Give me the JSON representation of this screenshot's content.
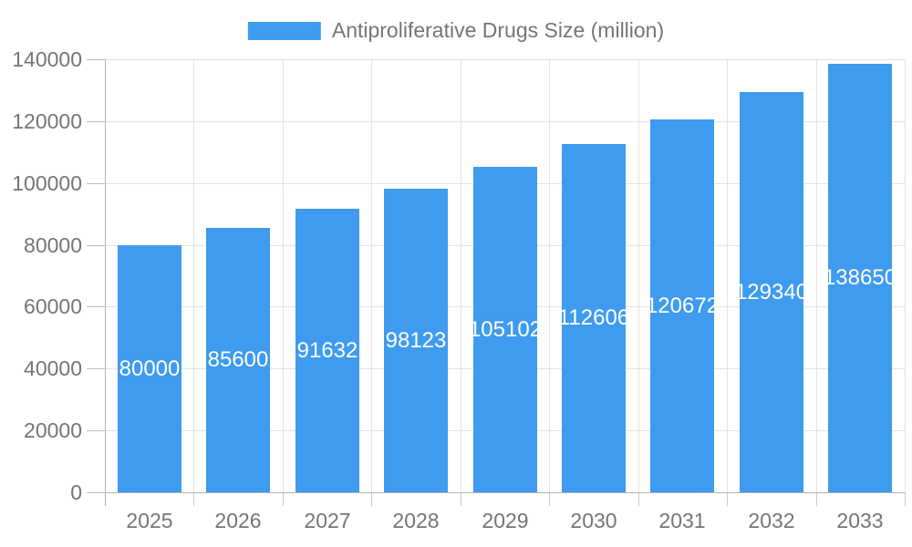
{
  "colors": {
    "bar": "#3e9bef",
    "axis_text": "#757575",
    "legend_text": "#757575",
    "value_label": "#ffffff",
    "gridline": "#e3e3e3",
    "axis_line": "#b3b3b3",
    "background": "#ffffff"
  },
  "chart_data": {
    "type": "bar",
    "title": "",
    "series_name": "Antiproliferative Drugs Size (million)",
    "categories": [
      "2025",
      "2026",
      "2027",
      "2028",
      "2029",
      "2030",
      "2031",
      "2032",
      "2033"
    ],
    "values": [
      80000,
      85600,
      91632,
      98123,
      105102,
      112606,
      120672,
      129340,
      138650
    ],
    "value_labels": [
      "80000",
      "85600",
      "91632",
      "98123",
      "105102",
      "112606",
      "120672",
      "129340",
      "138650"
    ],
    "ylim": [
      0,
      140000
    ],
    "yticks": [
      0,
      20000,
      40000,
      60000,
      80000,
      100000,
      120000,
      140000
    ],
    "ytick_labels": [
      "0",
      "20000",
      "40000",
      "60000",
      "80000",
      "100000",
      "120000",
      "140000"
    ],
    "xlabel": "",
    "ylabel": "",
    "grid": true,
    "legend_position": "top-center",
    "value_labels_inside_bars": true
  }
}
